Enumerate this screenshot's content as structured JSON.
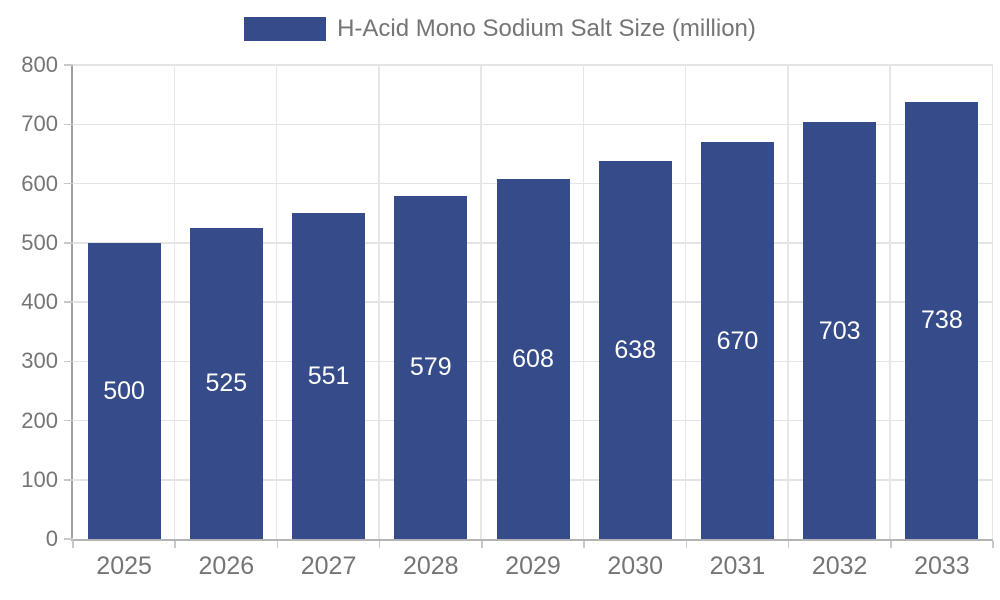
{
  "chart_data": {
    "type": "bar",
    "title": "H-Acid Mono Sodium Salt Size (million)",
    "legend": [
      "H-Acid Mono Sodium Salt Size (million)"
    ],
    "legend_position": "top-center",
    "categories": [
      "2025",
      "2026",
      "2027",
      "2028",
      "2029",
      "2030",
      "2031",
      "2032",
      "2033"
    ],
    "values": [
      500,
      525,
      551,
      579,
      608,
      638,
      670,
      703,
      738
    ],
    "xlabel": "",
    "ylabel": "",
    "ylim": [
      0,
      800
    ],
    "yticks": [
      0,
      100,
      200,
      300,
      400,
      500,
      600,
      700,
      800
    ],
    "grid": true,
    "value_labels": "centered-inside-bars"
  },
  "colors": {
    "bar": "#364c8a",
    "value_label": "#ffffff",
    "axis_text": "#757575",
    "grid": "#e4e4e4",
    "left_spine": "#a0a0a0",
    "bottom_axis": "#b4b4b4",
    "tick": "#c8c8c8",
    "background": "#ffffff"
  }
}
